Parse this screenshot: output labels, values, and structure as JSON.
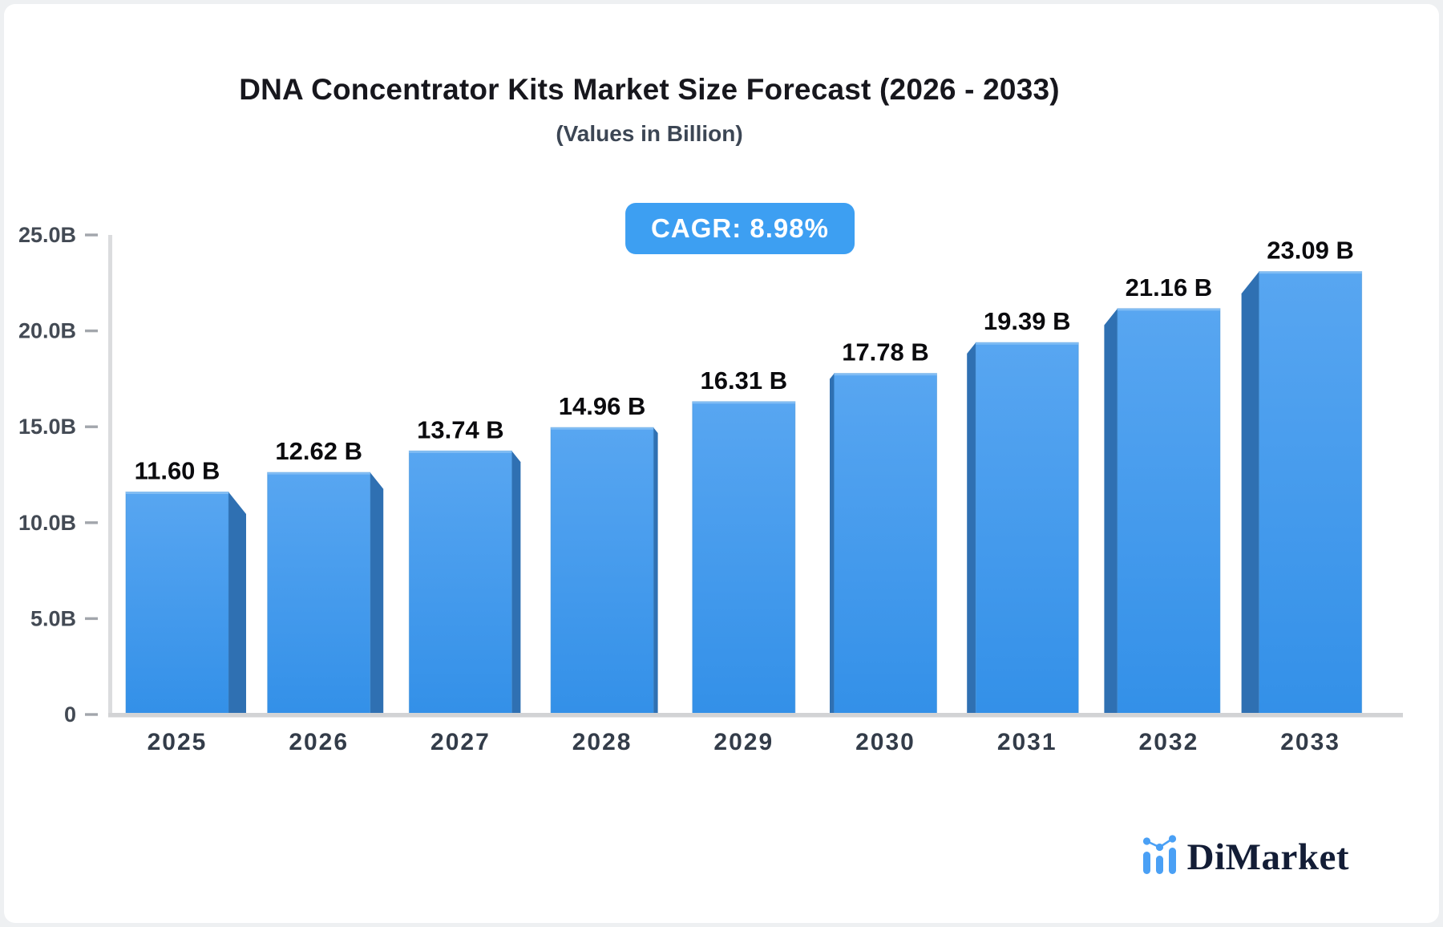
{
  "header": {
    "title": "DNA Concentrator Kits Market Size Forecast (2026 - 2033)",
    "subtitle": "(Values in Billion)",
    "cagr_label": "CAGR: 8.98%"
  },
  "chart_data": {
    "type": "bar",
    "style": "3d-perspective-bars",
    "title": "DNA Concentrator Kits Market Size Forecast (2026 - 2033)",
    "subtitle": "(Values in Billion)",
    "cagr": "8.98%",
    "categories": [
      "2025",
      "2026",
      "2027",
      "2028",
      "2029",
      "2030",
      "2031",
      "2032",
      "2033"
    ],
    "values": [
      11.6,
      12.62,
      13.74,
      14.96,
      16.31,
      17.78,
      19.39,
      21.16,
      23.09
    ],
    "value_labels": [
      "11.60 B",
      "12.62 B",
      "13.74 B",
      "14.96 B",
      "16.31 B",
      "17.78 B",
      "19.39 B",
      "21.16 B",
      "23.09 B"
    ],
    "unit": "Billion",
    "xlabel": "",
    "ylabel": "",
    "ylim": [
      0,
      25
    ],
    "y_ticks": [
      {
        "value": 0,
        "label": "0"
      },
      {
        "value": 5,
        "label": "5.0B"
      },
      {
        "value": 10,
        "label": "10.0B"
      },
      {
        "value": 15,
        "label": "15.0B"
      },
      {
        "value": 20,
        "label": "20.0B"
      },
      {
        "value": 25,
        "label": "25.0B"
      }
    ],
    "grid": false,
    "legend": "none",
    "colors": {
      "bar_face_top": "#58a6f1",
      "bar_face_bottom": "#3390e8",
      "bar_top_highlight": "#8cc3f5",
      "bar_side": "#2f70b2",
      "axis_line": "#dbdcde",
      "baseline": "#d2d3d5",
      "tick_dash": "#a2a6ac",
      "y_label": "#434a54",
      "x_label": "#333c49",
      "value_label": "#0b0b0e",
      "accent": "#3d9ff2"
    }
  },
  "footer": {
    "brand": "DiMarket"
  }
}
